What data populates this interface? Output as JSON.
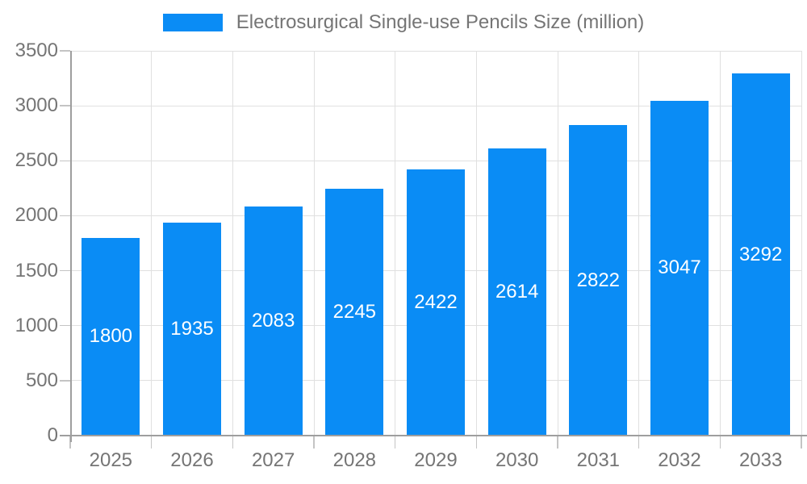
{
  "chart_data": {
    "type": "bar",
    "title": "Electrosurgical Single-use Pencils Size (million)",
    "categories": [
      "2025",
      "2026",
      "2027",
      "2028",
      "2029",
      "2030",
      "2031",
      "2032",
      "2033"
    ],
    "values": [
      1800,
      1935,
      2083,
      2245,
      2422,
      2614,
      2822,
      3047,
      3292
    ],
    "value_labels": [
      "1800",
      "1935",
      "2083",
      "2245",
      "2422",
      "2614",
      "2822",
      "3047",
      "3292"
    ],
    "xlabel": "",
    "ylabel": "",
    "ylim": [
      0,
      3500
    ],
    "yticks": [
      0,
      500,
      1000,
      1500,
      2000,
      2500,
      3000,
      3500
    ],
    "ytick_labels": [
      "0",
      "500",
      "1000",
      "1500",
      "2000",
      "2500",
      "3000",
      "3500"
    ],
    "grid": true,
    "legend_position": "top-center",
    "value_label_position": "inside-middle",
    "colors": {
      "bar": "#0a8cf5",
      "value_label": "#ffffff",
      "grid": "#e0e0e0",
      "axis": "#9e9e9e",
      "tick": "#c4c4c4",
      "tick_label": "#757575",
      "legend_text": "#757575",
      "background": "#ffffff"
    }
  }
}
